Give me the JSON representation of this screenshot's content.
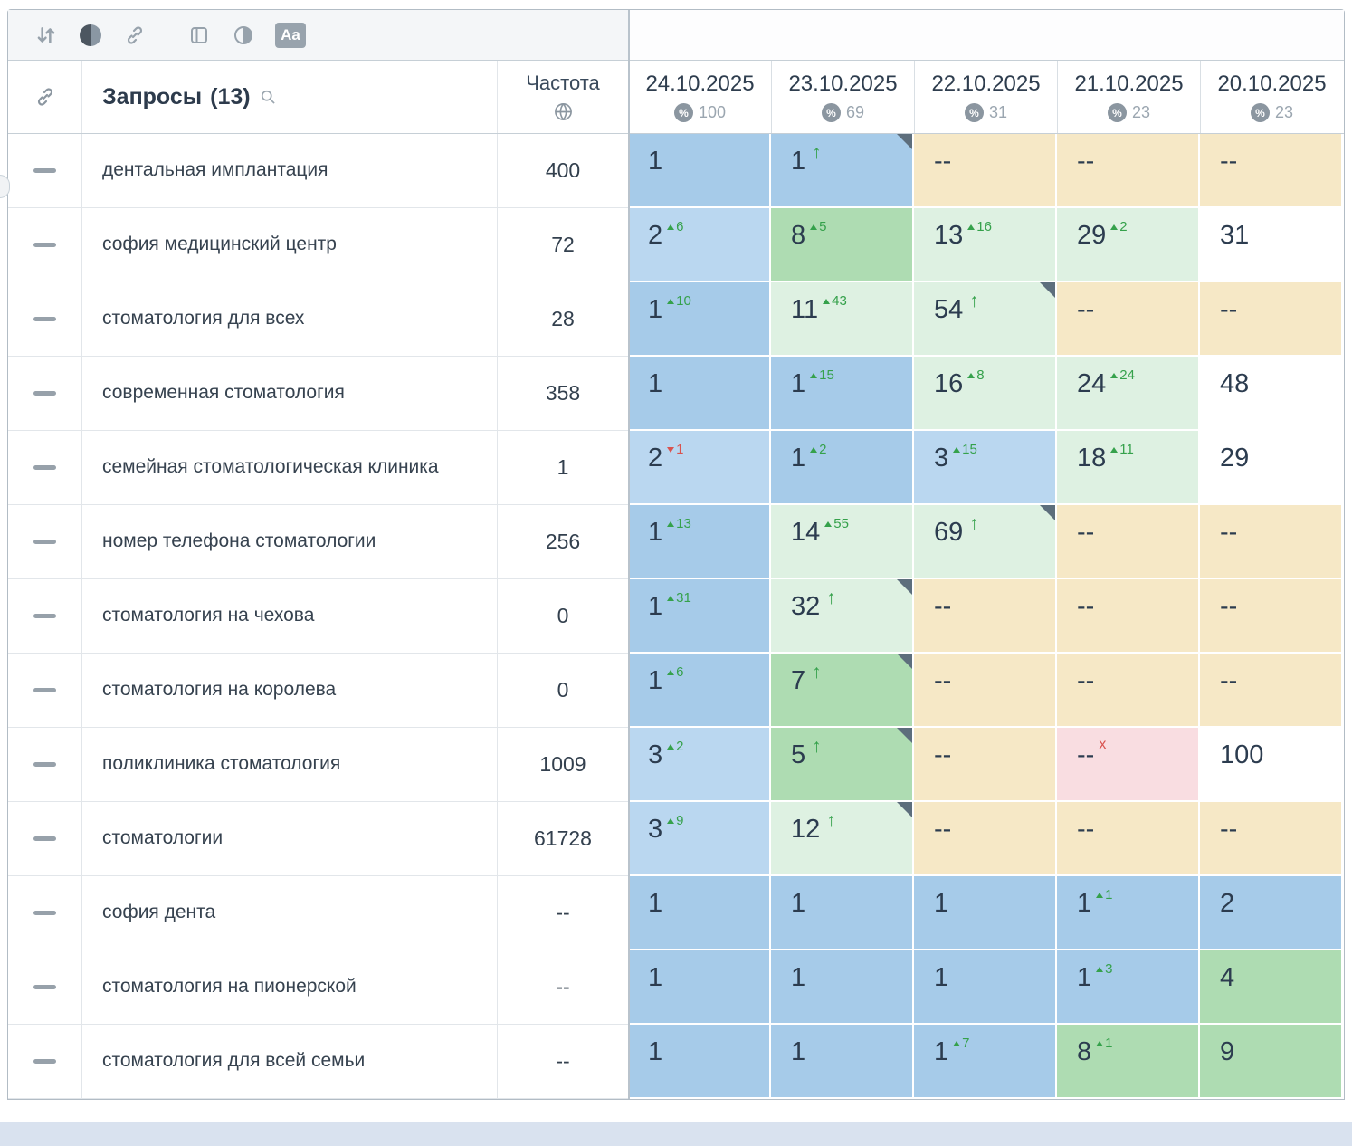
{
  "toolbar": {
    "aa_label": "Aa"
  },
  "header": {
    "queries_label": "Запросы",
    "queries_count": "(13)",
    "frequency_label": "Частота",
    "dates": [
      {
        "date": "24.10.2025",
        "percent_symbol": "%",
        "percent": "100"
      },
      {
        "date": "23.10.2025",
        "percent_symbol": "%",
        "percent": "69"
      },
      {
        "date": "22.10.2025",
        "percent_symbol": "%",
        "percent": "31"
      },
      {
        "date": "21.10.2025",
        "percent_symbol": "%",
        "percent": "23"
      },
      {
        "date": "20.10.2025",
        "percent_symbol": "%",
        "percent": "23"
      }
    ]
  },
  "colors": {
    "blue": "#a6cbe9",
    "blue2": "#bad7f0",
    "green": "#aedcb2",
    "green2": "#def1e2",
    "tan": "#f6e8c6",
    "pink": "#f9dde1",
    "up": "#35a14b",
    "down": "#d9534f",
    "corner": "#5d6e7c"
  },
  "rows": [
    {
      "query": "дентальная имплантация",
      "freq": "400",
      "cells": [
        {
          "value": "1",
          "color": "blue"
        },
        {
          "value": "1",
          "type": "new",
          "color": "blue",
          "corner": true
        },
        {
          "value": "--",
          "color": "tan"
        },
        {
          "value": "--",
          "color": "tan"
        },
        {
          "value": "--",
          "color": "tan"
        }
      ]
    },
    {
      "query": "софия медицинский центр",
      "freq": "72",
      "cells": [
        {
          "value": "2",
          "type": "up",
          "change": "6",
          "color": "blue2"
        },
        {
          "value": "8",
          "type": "up",
          "change": "5",
          "color": "green"
        },
        {
          "value": "13",
          "type": "up",
          "change": "16",
          "color": "green2"
        },
        {
          "value": "29",
          "type": "up",
          "change": "2",
          "color": "green2"
        },
        {
          "value": "31",
          "color": "white"
        }
      ]
    },
    {
      "query": "стоматология для всех",
      "freq": "28",
      "cells": [
        {
          "value": "1",
          "type": "up",
          "change": "10",
          "color": "blue"
        },
        {
          "value": "11",
          "type": "up",
          "change": "43",
          "color": "green2"
        },
        {
          "value": "54",
          "type": "new",
          "color": "green2",
          "corner": true
        },
        {
          "value": "--",
          "color": "tan"
        },
        {
          "value": "--",
          "color": "tan"
        }
      ]
    },
    {
      "query": "современная стоматология",
      "freq": "358",
      "cells": [
        {
          "value": "1",
          "color": "blue"
        },
        {
          "value": "1",
          "type": "up",
          "change": "15",
          "color": "blue"
        },
        {
          "value": "16",
          "type": "up",
          "change": "8",
          "color": "green2"
        },
        {
          "value": "24",
          "type": "up",
          "change": "24",
          "color": "green2"
        },
        {
          "value": "48",
          "color": "white"
        }
      ]
    },
    {
      "query": "семейная стоматологическая клиника",
      "freq": "1",
      "cells": [
        {
          "value": "2",
          "type": "down",
          "change": "1",
          "color": "blue2"
        },
        {
          "value": "1",
          "type": "up",
          "change": "2",
          "color": "blue"
        },
        {
          "value": "3",
          "type": "up",
          "change": "15",
          "color": "blue2"
        },
        {
          "value": "18",
          "type": "up",
          "change": "11",
          "color": "green2"
        },
        {
          "value": "29",
          "color": "white"
        }
      ]
    },
    {
      "query": "номер телефона стоматологии",
      "freq": "256",
      "cells": [
        {
          "value": "1",
          "type": "up",
          "change": "13",
          "color": "blue"
        },
        {
          "value": "14",
          "type": "up",
          "change": "55",
          "color": "green2"
        },
        {
          "value": "69",
          "type": "new",
          "color": "green2",
          "corner": true
        },
        {
          "value": "--",
          "color": "tan"
        },
        {
          "value": "--",
          "color": "tan"
        }
      ]
    },
    {
      "query": "стоматология на чехова",
      "freq": "0",
      "cells": [
        {
          "value": "1",
          "type": "up",
          "change": "31",
          "color": "blue"
        },
        {
          "value": "32",
          "type": "new",
          "color": "green2",
          "corner": true
        },
        {
          "value": "--",
          "color": "tan"
        },
        {
          "value": "--",
          "color": "tan"
        },
        {
          "value": "--",
          "color": "tan"
        }
      ]
    },
    {
      "query": "стоматология на королева",
      "freq": "0",
      "cells": [
        {
          "value": "1",
          "type": "up",
          "change": "6",
          "color": "blue"
        },
        {
          "value": "7",
          "type": "new",
          "color": "green",
          "corner": true
        },
        {
          "value": "--",
          "color": "tan"
        },
        {
          "value": "--",
          "color": "tan"
        },
        {
          "value": "--",
          "color": "tan"
        }
      ]
    },
    {
      "query": "поликлиника стоматология",
      "freq": "1009",
      "cells": [
        {
          "value": "3",
          "type": "up",
          "change": "2",
          "color": "blue2"
        },
        {
          "value": "5",
          "type": "new",
          "color": "green",
          "corner": true
        },
        {
          "value": "--",
          "color": "tan"
        },
        {
          "value": "--",
          "type": "x",
          "color": "pink"
        },
        {
          "value": "100",
          "color": "white"
        }
      ]
    },
    {
      "query": "стоматологии",
      "freq": "61728",
      "cells": [
        {
          "value": "3",
          "type": "up",
          "change": "9",
          "color": "blue2"
        },
        {
          "value": "12",
          "type": "new",
          "color": "green2",
          "corner": true
        },
        {
          "value": "--",
          "color": "tan"
        },
        {
          "value": "--",
          "color": "tan"
        },
        {
          "value": "--",
          "color": "tan"
        }
      ]
    },
    {
      "query": "софия дента",
      "freq": "--",
      "cells": [
        {
          "value": "1",
          "color": "blue"
        },
        {
          "value": "1",
          "color": "blue"
        },
        {
          "value": "1",
          "color": "blue"
        },
        {
          "value": "1",
          "type": "up",
          "change": "1",
          "color": "blue"
        },
        {
          "value": "2",
          "color": "blue"
        }
      ]
    },
    {
      "query": "стоматология на пионерской",
      "freq": "--",
      "cells": [
        {
          "value": "1",
          "color": "blue"
        },
        {
          "value": "1",
          "color": "blue"
        },
        {
          "value": "1",
          "color": "blue"
        },
        {
          "value": "1",
          "type": "up",
          "change": "3",
          "color": "blue"
        },
        {
          "value": "4",
          "color": "green"
        }
      ]
    },
    {
      "query": "стоматология для всей семьи",
      "freq": "--",
      "cells": [
        {
          "value": "1",
          "color": "blue"
        },
        {
          "value": "1",
          "color": "blue"
        },
        {
          "value": "1",
          "type": "up",
          "change": "7",
          "color": "blue"
        },
        {
          "value": "8",
          "type": "up",
          "change": "1",
          "color": "green"
        },
        {
          "value": "9",
          "color": "green"
        }
      ]
    }
  ]
}
